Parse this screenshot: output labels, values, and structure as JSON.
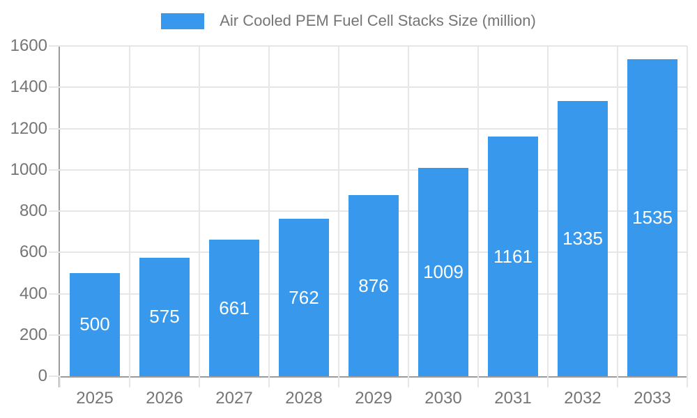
{
  "legend": {
    "label": "Air Cooled PEM Fuel Cell Stacks Size (million)"
  },
  "colors": {
    "bar": "#3899EC",
    "grid": "#E6E6E6",
    "axis": "#9C9C9C",
    "text": "#757575",
    "bar_label": "#FFFFFF",
    "background": "#FFFFFF"
  },
  "chart_data": {
    "type": "bar",
    "title": "Air Cooled PEM Fuel Cell Stacks Size (million)",
    "categories": [
      "2025",
      "2026",
      "2027",
      "2028",
      "2029",
      "2030",
      "2031",
      "2032",
      "2033"
    ],
    "values": [
      500,
      575,
      661,
      762,
      876,
      1009,
      1161,
      1335,
      1535
    ],
    "series": [
      {
        "name": "Air Cooled PEM Fuel Cell Stacks Size (million)",
        "values": [
          500,
          575,
          661,
          762,
          876,
          1009,
          1161,
          1335,
          1535
        ]
      }
    ],
    "xlabel": "",
    "ylabel": "",
    "ylim": [
      0,
      1600
    ],
    "yticks": [
      0,
      200,
      400,
      600,
      800,
      1000,
      1200,
      1400,
      1600
    ],
    "grid": "both",
    "legend_position": "top",
    "value_labels": "inside-center"
  }
}
